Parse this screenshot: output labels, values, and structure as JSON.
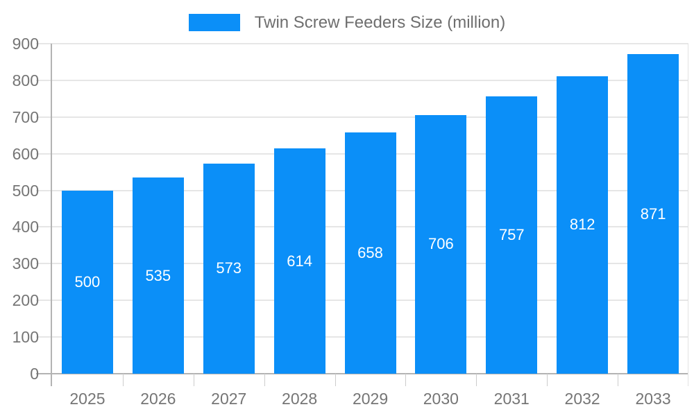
{
  "chart_data": {
    "type": "bar",
    "title": "Twin Screw Feeders Size (million)",
    "categories": [
      "2025",
      "2026",
      "2027",
      "2028",
      "2029",
      "2030",
      "2031",
      "2032",
      "2033"
    ],
    "values": [
      500,
      535,
      573,
      614,
      658,
      706,
      757,
      812,
      871
    ],
    "value_labels": [
      "500",
      "535",
      "573",
      "614",
      "658",
      "706",
      "757",
      "812",
      "871"
    ],
    "xlabel": "",
    "ylabel": "",
    "ylim": [
      0,
      900
    ],
    "ytick_step": 100,
    "ytick_labels": [
      "0",
      "100",
      "200",
      "300",
      "400",
      "500",
      "600",
      "700",
      "800",
      "900"
    ],
    "grid": true,
    "legend_position": "top-center",
    "colors": {
      "bar": "#0b8ff8",
      "legend_text": "#6e6e6e",
      "axis_text": "#757575",
      "value_label_text": "#ffffff",
      "gridline": "#e6e6e6",
      "axis_line": "#b3b3b3",
      "tick": "#cccccc",
      "background": "#ffffff"
    }
  }
}
